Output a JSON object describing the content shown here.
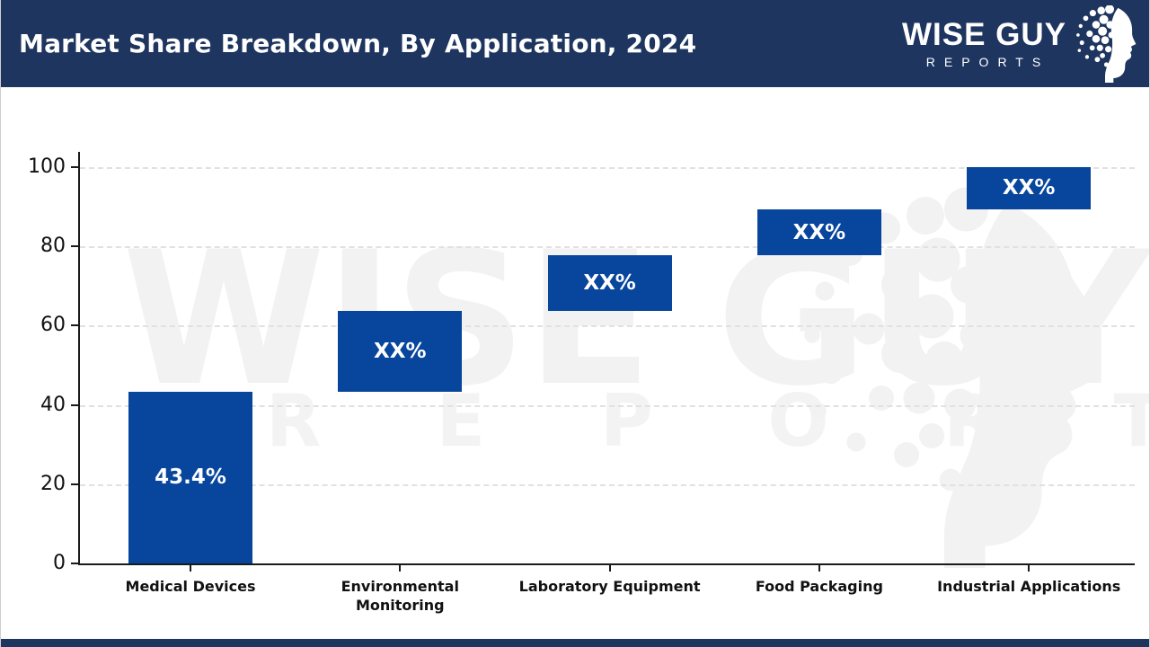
{
  "header": {
    "title": "Market Share Breakdown, By Application, 2024",
    "bg_color": "#1e3560",
    "logo": {
      "line1": "WISE GUY",
      "line2": "REPORTS"
    }
  },
  "watermark": {
    "line1": "WISE GUY",
    "line2": "R E P O R T S"
  },
  "chart_data": {
    "type": "bar",
    "subtype": "waterfall-floating-bars",
    "title": "Market Share Breakdown, By Application, 2024",
    "categories": [
      "Medical Devices",
      "Environmental Monitoring",
      "Laboratory Equipment",
      "Food Packaging",
      "Industrial Applications"
    ],
    "segments": [
      {
        "category": "Medical Devices",
        "start": 0,
        "end": 43.4,
        "label": "43.4%"
      },
      {
        "category": "Environmental Monitoring",
        "start": 43.4,
        "end": 63.7,
        "label": "XX%"
      },
      {
        "category": "Laboratory Equipment",
        "start": 63.7,
        "end": 77.7,
        "label": "XX%"
      },
      {
        "category": "Food Packaging",
        "start": 77.7,
        "end": 89.4,
        "label": "XX%"
      },
      {
        "category": "Industrial Applications",
        "start": 89.4,
        "end": 100.0,
        "label": "XX%"
      }
    ],
    "xlabel": "",
    "ylabel": "",
    "ylim": [
      0,
      105
    ],
    "yticks": [
      0,
      20,
      40,
      60,
      80,
      100
    ],
    "grid": {
      "horizontal": true,
      "style": "dashed",
      "color": "#e1e1e1"
    },
    "legend": "none",
    "bar_color": "#08459c",
    "bar_label_color": "#ffffff",
    "axis_color": "#1a1a1a"
  },
  "footer": {
    "bg_color": "#1e3560"
  }
}
